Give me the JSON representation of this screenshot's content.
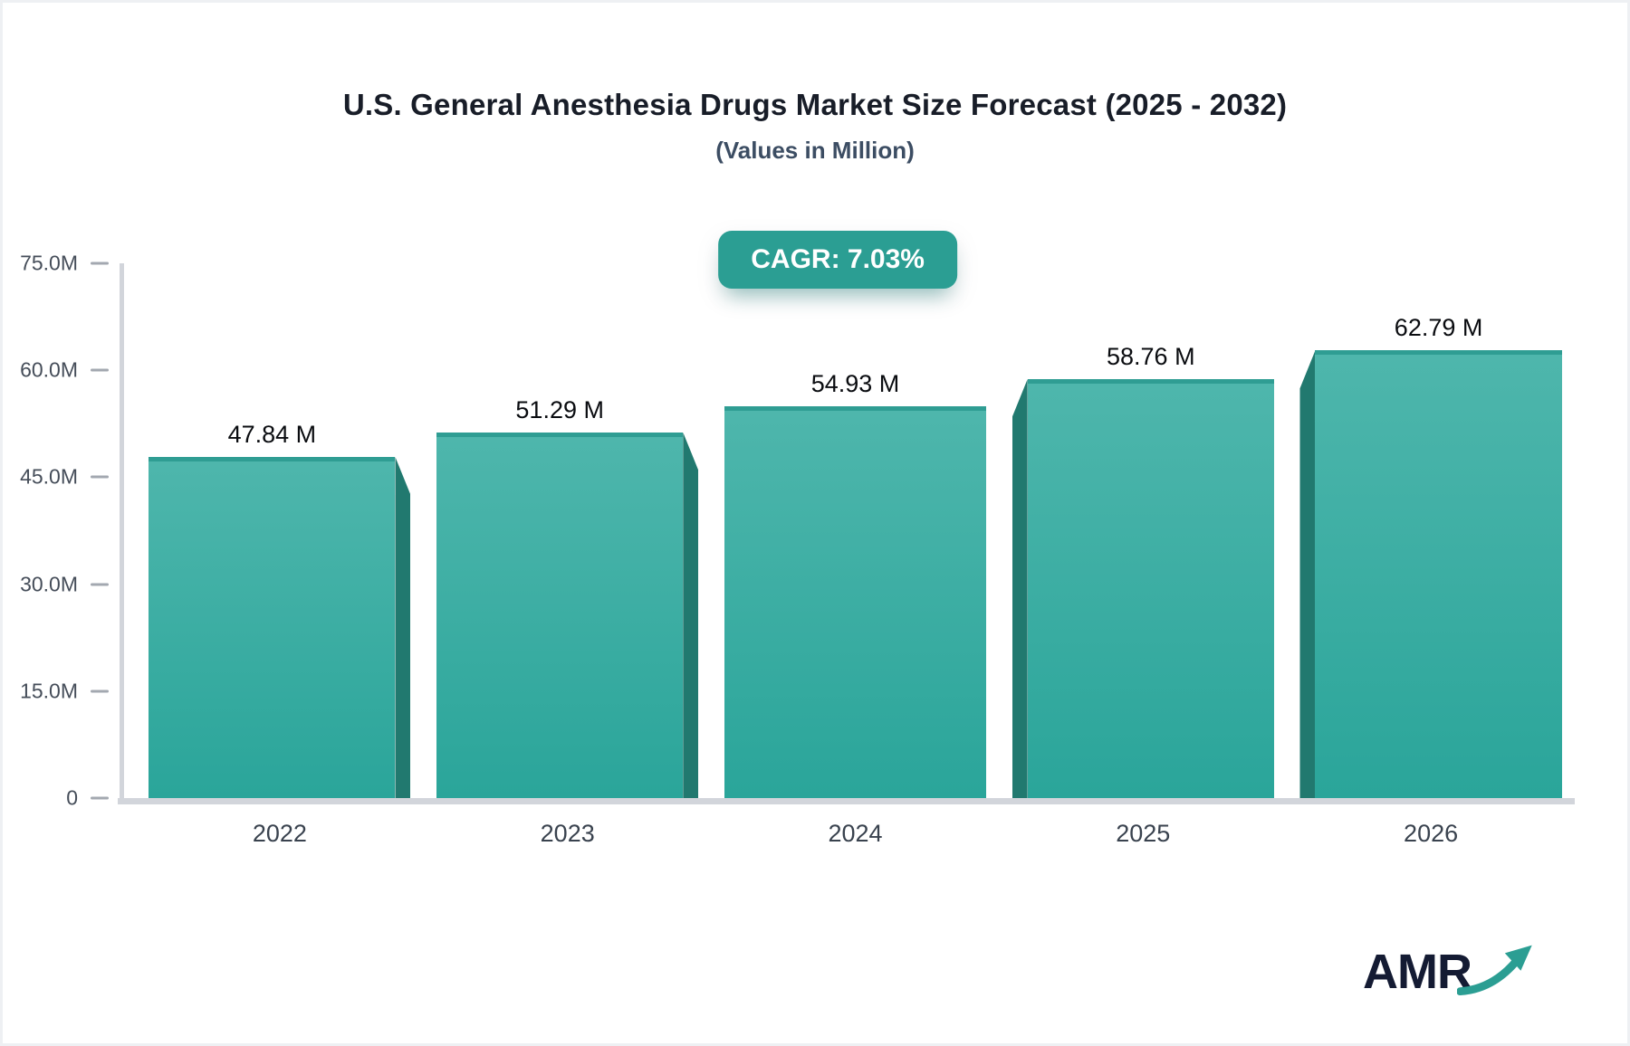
{
  "page": {
    "background": "#eef0f3",
    "card_background": "#ffffff"
  },
  "header": {
    "title": "U.S. General Anesthesia Drugs Market Size Forecast (2025 - 2032)",
    "subtitle": "(Values in Million)"
  },
  "badge": {
    "label": "CAGR: 7.03%",
    "background": "#2b9e93",
    "text_color": "#ffffff"
  },
  "chart_data": {
    "type": "bar",
    "title": "U.S. General Anesthesia Drugs Market Size Forecast (2025 - 2032)",
    "subtitle": "(Values in Million)",
    "categories": [
      "2022",
      "2023",
      "2024",
      "2025",
      "2026"
    ],
    "values": [
      47.84,
      51.29,
      54.93,
      58.76,
      62.79
    ],
    "bar_labels": [
      "47.84 M",
      "51.29 M",
      "54.93 M",
      "58.76 M",
      "62.79 M"
    ],
    "side_faces": [
      "right",
      "right",
      "none",
      "left",
      "left"
    ],
    "annotation": "CAGR: 7.03%",
    "xlabel": "",
    "ylabel": "",
    "ylim": [
      0,
      75
    ],
    "yticks": [
      {
        "value": 0,
        "label": "0"
      },
      {
        "value": 15,
        "label": "15.0M"
      },
      {
        "value": 30,
        "label": "30.0M"
      },
      {
        "value": 45,
        "label": "45.0M"
      },
      {
        "value": 60,
        "label": "60.0M"
      },
      {
        "value": 75,
        "label": "75.0M"
      }
    ],
    "grid": false,
    "legend": false,
    "bar_color_top": "#4eb6ac",
    "bar_color_bottom": "#2aa59a",
    "bar_top_edge_color": "#2f9d93",
    "bar_side_color": "#21796f",
    "axis_color": "#d2d5db"
  },
  "logo": {
    "text": "AMR",
    "icon": "trend-up-arrow-icon",
    "text_color": "#141b33",
    "arrow_color": "#2b9e93"
  }
}
